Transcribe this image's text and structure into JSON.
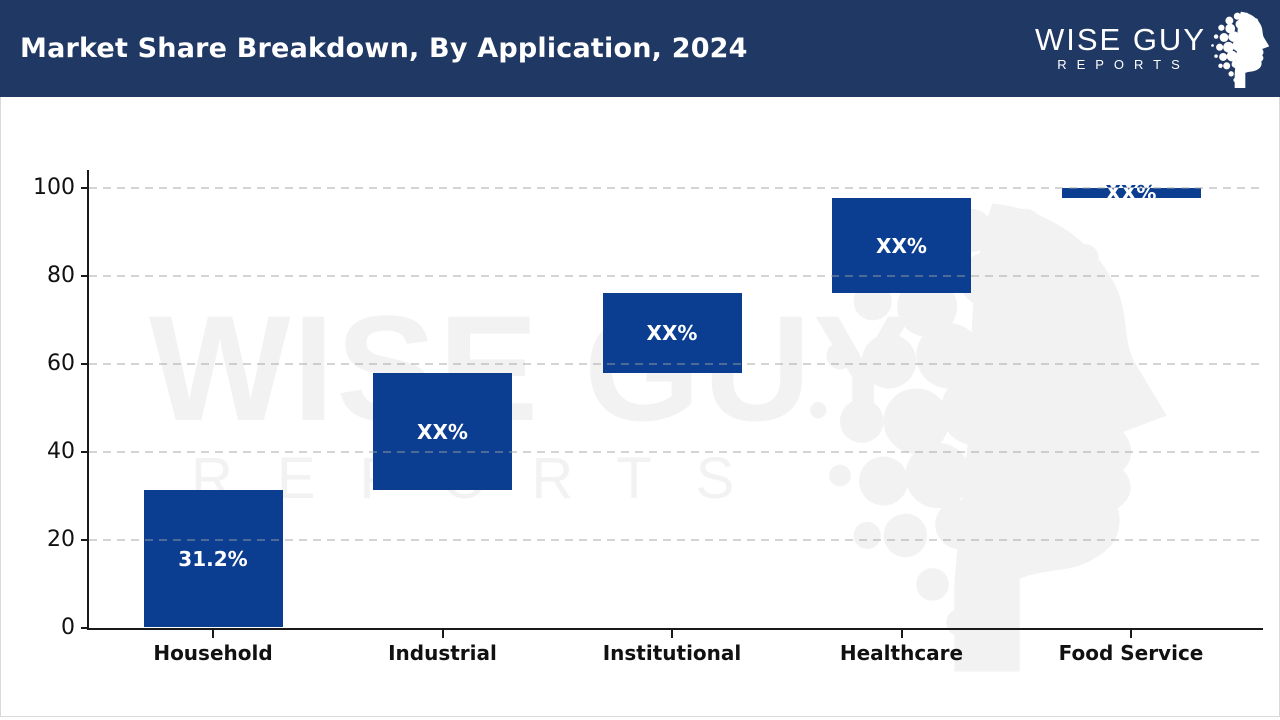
{
  "header": {
    "title": "Market Share Breakdown, By Application, 2024",
    "bg_color": "#203864",
    "logo": {
      "line1": "WISE GUY",
      "line2": "REPORTS"
    }
  },
  "watermark": {
    "line1": "WISE GUY",
    "line2": "REPORTS"
  },
  "chart_data": {
    "type": "bar",
    "subtype": "waterfall",
    "title": "Market Share Breakdown, By Application, 2024",
    "categories": [
      "Household",
      "Industrial",
      "Institutional",
      "Healthcare",
      "Food Service"
    ],
    "segments": [
      {
        "category": "Household",
        "start": 0,
        "end": 31.2,
        "label": "31.2%"
      },
      {
        "category": "Industrial",
        "start": 31.2,
        "end": 57.8,
        "label": "XX%"
      },
      {
        "category": "Institutional",
        "start": 57.8,
        "end": 76.0,
        "label": "XX%"
      },
      {
        "category": "Healthcare",
        "start": 76.0,
        "end": 97.6,
        "label": "XX%"
      },
      {
        "category": "Food Service",
        "start": 97.6,
        "end": 100,
        "label": "XX%"
      }
    ],
    "xlabel": "",
    "ylabel": "",
    "ylim": [
      0,
      100
    ],
    "yticks": [
      0,
      20,
      40,
      60,
      80,
      100
    ],
    "grid": "horizontal-dashed",
    "legend": "none",
    "colors": {
      "bar": "#0b3d91",
      "bar_label": "#ffffff",
      "axis": "#1a1a1a",
      "grid": "#d9d9d9",
      "header_bg": "#203864",
      "watermark": "#f2f2f2"
    }
  }
}
